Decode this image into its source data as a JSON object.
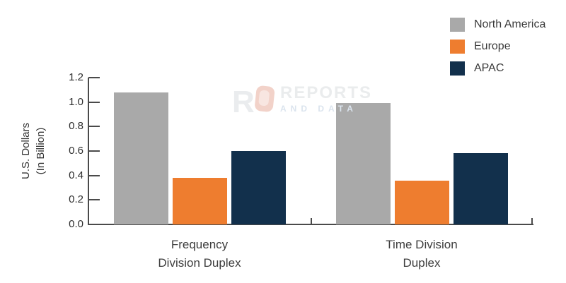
{
  "watermark": {
    "line1": "REPORTS",
    "line2": "AND DATA",
    "logo": "reports-and-data-logo"
  },
  "chart_data": {
    "type": "bar",
    "title": "",
    "categories": [
      "Frequency Division Duplex",
      "Time Division Duplex"
    ],
    "category_labels": [
      "Frequency\nDivision Duplex",
      "Time Division\nDuplex"
    ],
    "series": [
      {
        "name": "North America",
        "color": "#a9a9a9",
        "values": [
          1.08,
          0.99
        ]
      },
      {
        "name": "Europe",
        "color": "#ee7d2f",
        "values": [
          0.38,
          0.36
        ]
      },
      {
        "name": "APAC",
        "color": "#12304c",
        "values": [
          0.6,
          0.58
        ]
      }
    ],
    "xlabel": "",
    "ylabel": "U.S. Dollars\n(In Billion)",
    "ylim": [
      0,
      1.2
    ],
    "yticks": [
      0.0,
      0.2,
      0.4,
      0.6,
      0.8,
      1.0,
      1.2
    ],
    "legend_position": "top-right",
    "grid": false,
    "axis_color": "#4a4a4a",
    "tick_label_color": "#2d2d2d",
    "category_label_color": "#3d3d3d"
  }
}
